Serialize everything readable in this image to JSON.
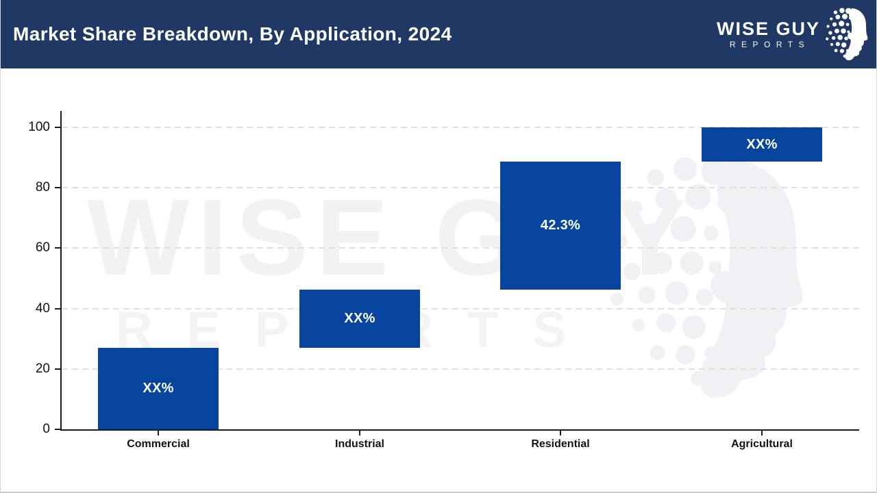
{
  "header": {
    "title": "Market Share Breakdown, By Application, 2024",
    "brand": {
      "line1": "WISE GUY",
      "line2": "REPORTS"
    }
  },
  "watermark": {
    "line1": "WISE GUY",
    "line2": "REPORTS"
  },
  "colors": {
    "header_background": "#1f3864",
    "bar": "#07449d",
    "bar_label": "#ffffff",
    "gridline": "#dcdcdc",
    "axis": "#1c1c1c",
    "watermark": "#f2f2f5"
  },
  "chart_data": {
    "type": "bar",
    "variant": "waterfall-floating-segments",
    "title": "Market Share Breakdown, By Application, 2024",
    "categories": [
      "Commercial",
      "Industrial",
      "Residential",
      "Agricultural"
    ],
    "bars": [
      {
        "category": "Commercial",
        "start": 0,
        "end": 26.9,
        "value": 26.9,
        "label": "XX%"
      },
      {
        "category": "Industrial",
        "start": 26.9,
        "end": 46.3,
        "value": 19.4,
        "label": "XX%"
      },
      {
        "category": "Residential",
        "start": 46.3,
        "end": 88.6,
        "value": 42.3,
        "label": "42.3%"
      },
      {
        "category": "Agricultural",
        "start": 88.6,
        "end": 100,
        "value": 11.4,
        "label": "XX%"
      }
    ],
    "ylabel": "",
    "xlabel": "",
    "ylim": [
      0,
      100
    ],
    "yticks": [
      0,
      20,
      40,
      60,
      80,
      100
    ],
    "grid": "horizontal-dashed",
    "legend": "none"
  }
}
